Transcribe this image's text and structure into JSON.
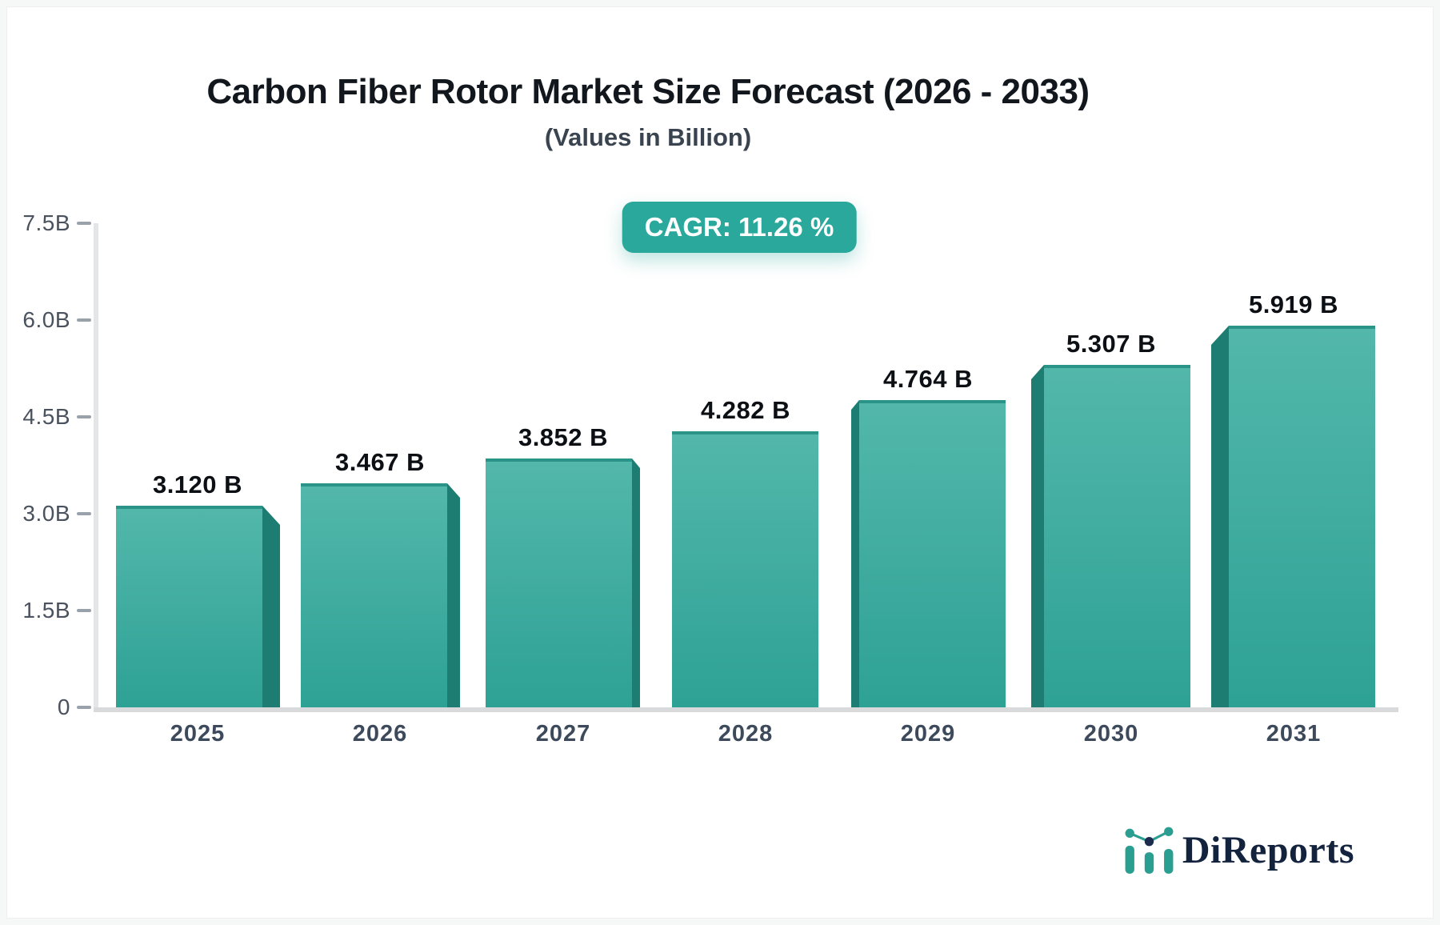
{
  "header": {
    "title": "Carbon Fiber Rotor Market Size Forecast (2026 - 2033)",
    "subtitle": "(Values in Billion)"
  },
  "badge": {
    "label": "CAGR: 11.26 %",
    "background": "#2aa89b",
    "text_color": "#ffffff"
  },
  "chart_data": {
    "type": "bar",
    "title": "Carbon Fiber Rotor Market Size Forecast (2026 - 2033)",
    "subtitle": "(Values in Billion)",
    "unit": "Billion",
    "cagr_percent": 11.26,
    "categories": [
      "2025",
      "2026",
      "2027",
      "2028",
      "2029",
      "2030",
      "2031"
    ],
    "values": [
      3.12,
      3.467,
      3.852,
      4.282,
      4.764,
      5.307,
      5.919
    ],
    "value_labels": [
      "3.120 B",
      "3.467 B",
      "3.852 B",
      "4.282 B",
      "4.764 B",
      "5.307 B",
      "5.919 B"
    ],
    "y_ticks": [
      {
        "label": "7.5B",
        "value": 7.5
      },
      {
        "label": "6.0B",
        "value": 6.0
      },
      {
        "label": "4.5B",
        "value": 4.5
      },
      {
        "label": "3.0B",
        "value": 3.0
      },
      {
        "label": "1.5B",
        "value": 1.5
      },
      {
        "label": "0",
        "value": 0
      }
    ],
    "ylim": [
      0,
      7.5
    ],
    "grid": false,
    "legend": false,
    "bar_color_top": "#53b7ab",
    "bar_color_bottom": "#2ea195",
    "bar_side_color": "#1e7d72",
    "bar_top_edge_color": "#2b9488"
  },
  "logo": {
    "text": "DiReports",
    "icon": "bar-chart-logo-icon",
    "text_color": "#13233d",
    "icon_color": "#2b9e92",
    "icon_dot_color": "#1d2b4f"
  }
}
